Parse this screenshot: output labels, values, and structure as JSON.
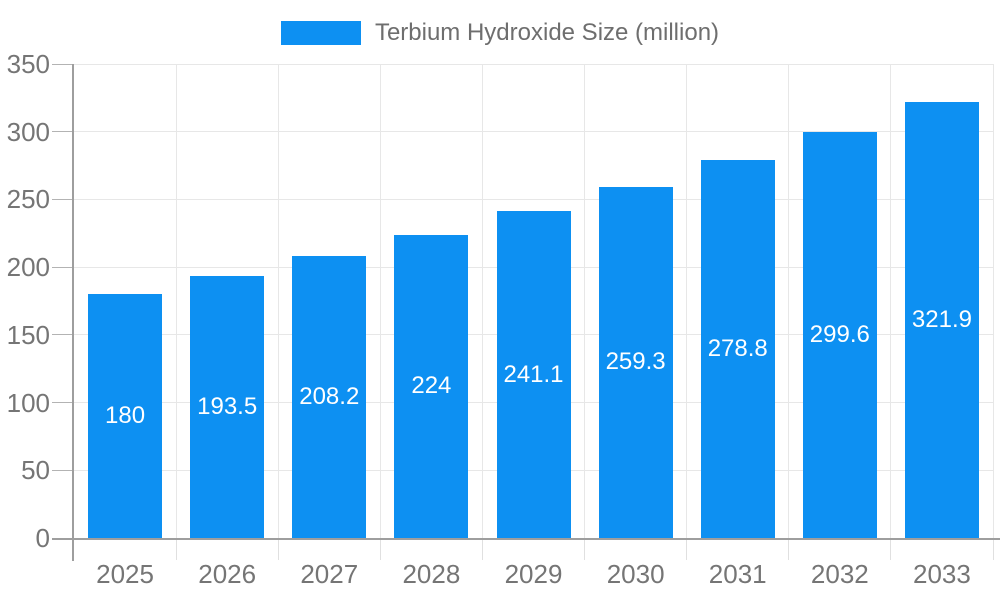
{
  "chart_data": {
    "type": "bar",
    "legend": "Terbium Hydroxide Size (million)",
    "legend_position": "top",
    "categories": [
      "2025",
      "2026",
      "2027",
      "2028",
      "2029",
      "2030",
      "2031",
      "2032",
      "2033"
    ],
    "values": [
      180,
      193.5,
      208.2,
      224,
      241.1,
      259.3,
      278.8,
      299.6,
      321.9
    ],
    "value_labels": [
      "180",
      "193.5",
      "208.2",
      "224",
      "241.1",
      "259.3",
      "278.8",
      "299.6",
      "321.9"
    ],
    "xlabel": "",
    "ylabel": "",
    "ylim": [
      0,
      350
    ],
    "yticks": [
      0,
      50,
      100,
      150,
      200,
      250,
      300,
      350
    ],
    "grid": true,
    "colors": {
      "bar": "#0d90f2",
      "grid": "#e7e7e7",
      "axis": "#9e9e9e",
      "y_tick": "#b3b3b3",
      "x_tick": "#e0e0e0",
      "tick_label": "#757575",
      "legend_label": "#6e6e6e",
      "value_label": "#ffffff"
    }
  }
}
